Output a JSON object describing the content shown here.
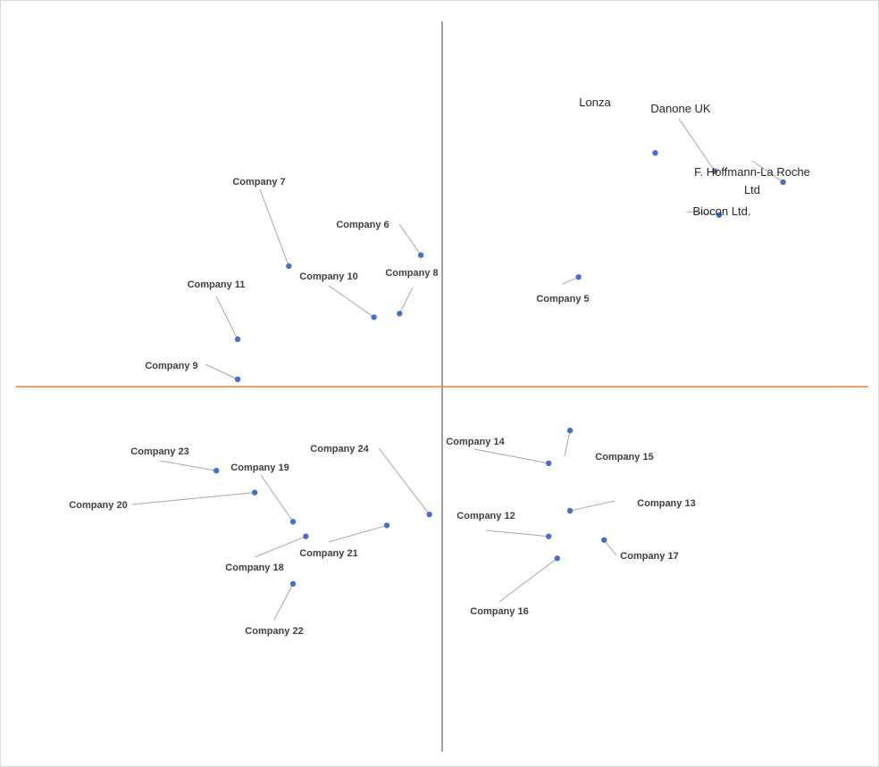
{
  "chart_data": {
    "type": "scatter",
    "title": "",
    "xlabel": "",
    "ylabel": "",
    "xlim": [
      0,
      10
    ],
    "ylim": [
      0,
      10
    ],
    "grid": false,
    "axis_colors": {
      "vertical": "#808080",
      "horizontal": "#ed7d31"
    },
    "point_color": "#4472c4",
    "points": [
      {
        "id": "p1",
        "label": "Lonza",
        "x": 7.5,
        "y": 8.2,
        "size": "large"
      },
      {
        "id": "p2",
        "label": "Danone UK",
        "x": 8.2,
        "y": 7.95,
        "size": "large"
      },
      {
        "id": "p3",
        "label": "F. Hoffmann-La Roche Ltd",
        "x": 9.0,
        "y": 7.8,
        "size": "large"
      },
      {
        "id": "p4",
        "label": "Biocon Ltd.",
        "x": 8.25,
        "y": 7.35,
        "size": "large"
      },
      {
        "id": "p5",
        "label": "Company 5",
        "x": 6.6,
        "y": 6.5,
        "size": "small"
      },
      {
        "id": "p6",
        "label": "Company 6",
        "x": 4.75,
        "y": 6.8,
        "size": "small"
      },
      {
        "id": "p7",
        "label": "Company 7",
        "x": 3.2,
        "y": 6.65,
        "size": "small"
      },
      {
        "id": "p8",
        "label": "Company 8",
        "x": 4.5,
        "y": 6.0,
        "size": "small"
      },
      {
        "id": "p9",
        "label": "Company 9",
        "x": 2.6,
        "y": 5.1,
        "size": "small"
      },
      {
        "id": "p10",
        "label": "Company 10",
        "x": 4.2,
        "y": 5.95,
        "size": "small"
      },
      {
        "id": "p11",
        "label": "Company 11",
        "x": 2.6,
        "y": 5.65,
        "size": "small"
      },
      {
        "id": "p12",
        "label": "Company 12",
        "x": 6.25,
        "y": 2.95,
        "size": "small"
      },
      {
        "id": "p13",
        "label": "Company 13",
        "x": 6.5,
        "y": 3.3,
        "size": "small"
      },
      {
        "id": "p14",
        "label": "Company 14",
        "x": 6.25,
        "y": 3.95,
        "size": "small"
      },
      {
        "id": "p15",
        "label": "Company 15",
        "x": 6.5,
        "y": 4.4,
        "size": "small"
      },
      {
        "id": "p16",
        "label": "Company 16",
        "x": 6.35,
        "y": 2.65,
        "size": "small"
      },
      {
        "id": "p17",
        "label": "Company 17",
        "x": 6.9,
        "y": 2.9,
        "size": "small"
      },
      {
        "id": "p18",
        "label": "Company 18",
        "x": 3.4,
        "y": 2.95,
        "size": "small"
      },
      {
        "id": "p19",
        "label": "Company 19",
        "x": 3.25,
        "y": 3.15,
        "size": "small"
      },
      {
        "id": "p20",
        "label": "Company 20",
        "x": 2.8,
        "y": 3.55,
        "size": "small"
      },
      {
        "id": "p21",
        "label": "Company 21",
        "x": 4.35,
        "y": 3.1,
        "size": "small"
      },
      {
        "id": "p22",
        "label": "Company 22",
        "x": 3.25,
        "y": 2.3,
        "size": "small"
      },
      {
        "id": "p23",
        "label": "Company 23",
        "x": 2.35,
        "y": 3.85,
        "size": "small"
      },
      {
        "id": "p24",
        "label": "Company 24",
        "x": 4.85,
        "y": 3.25,
        "size": "small"
      }
    ]
  }
}
